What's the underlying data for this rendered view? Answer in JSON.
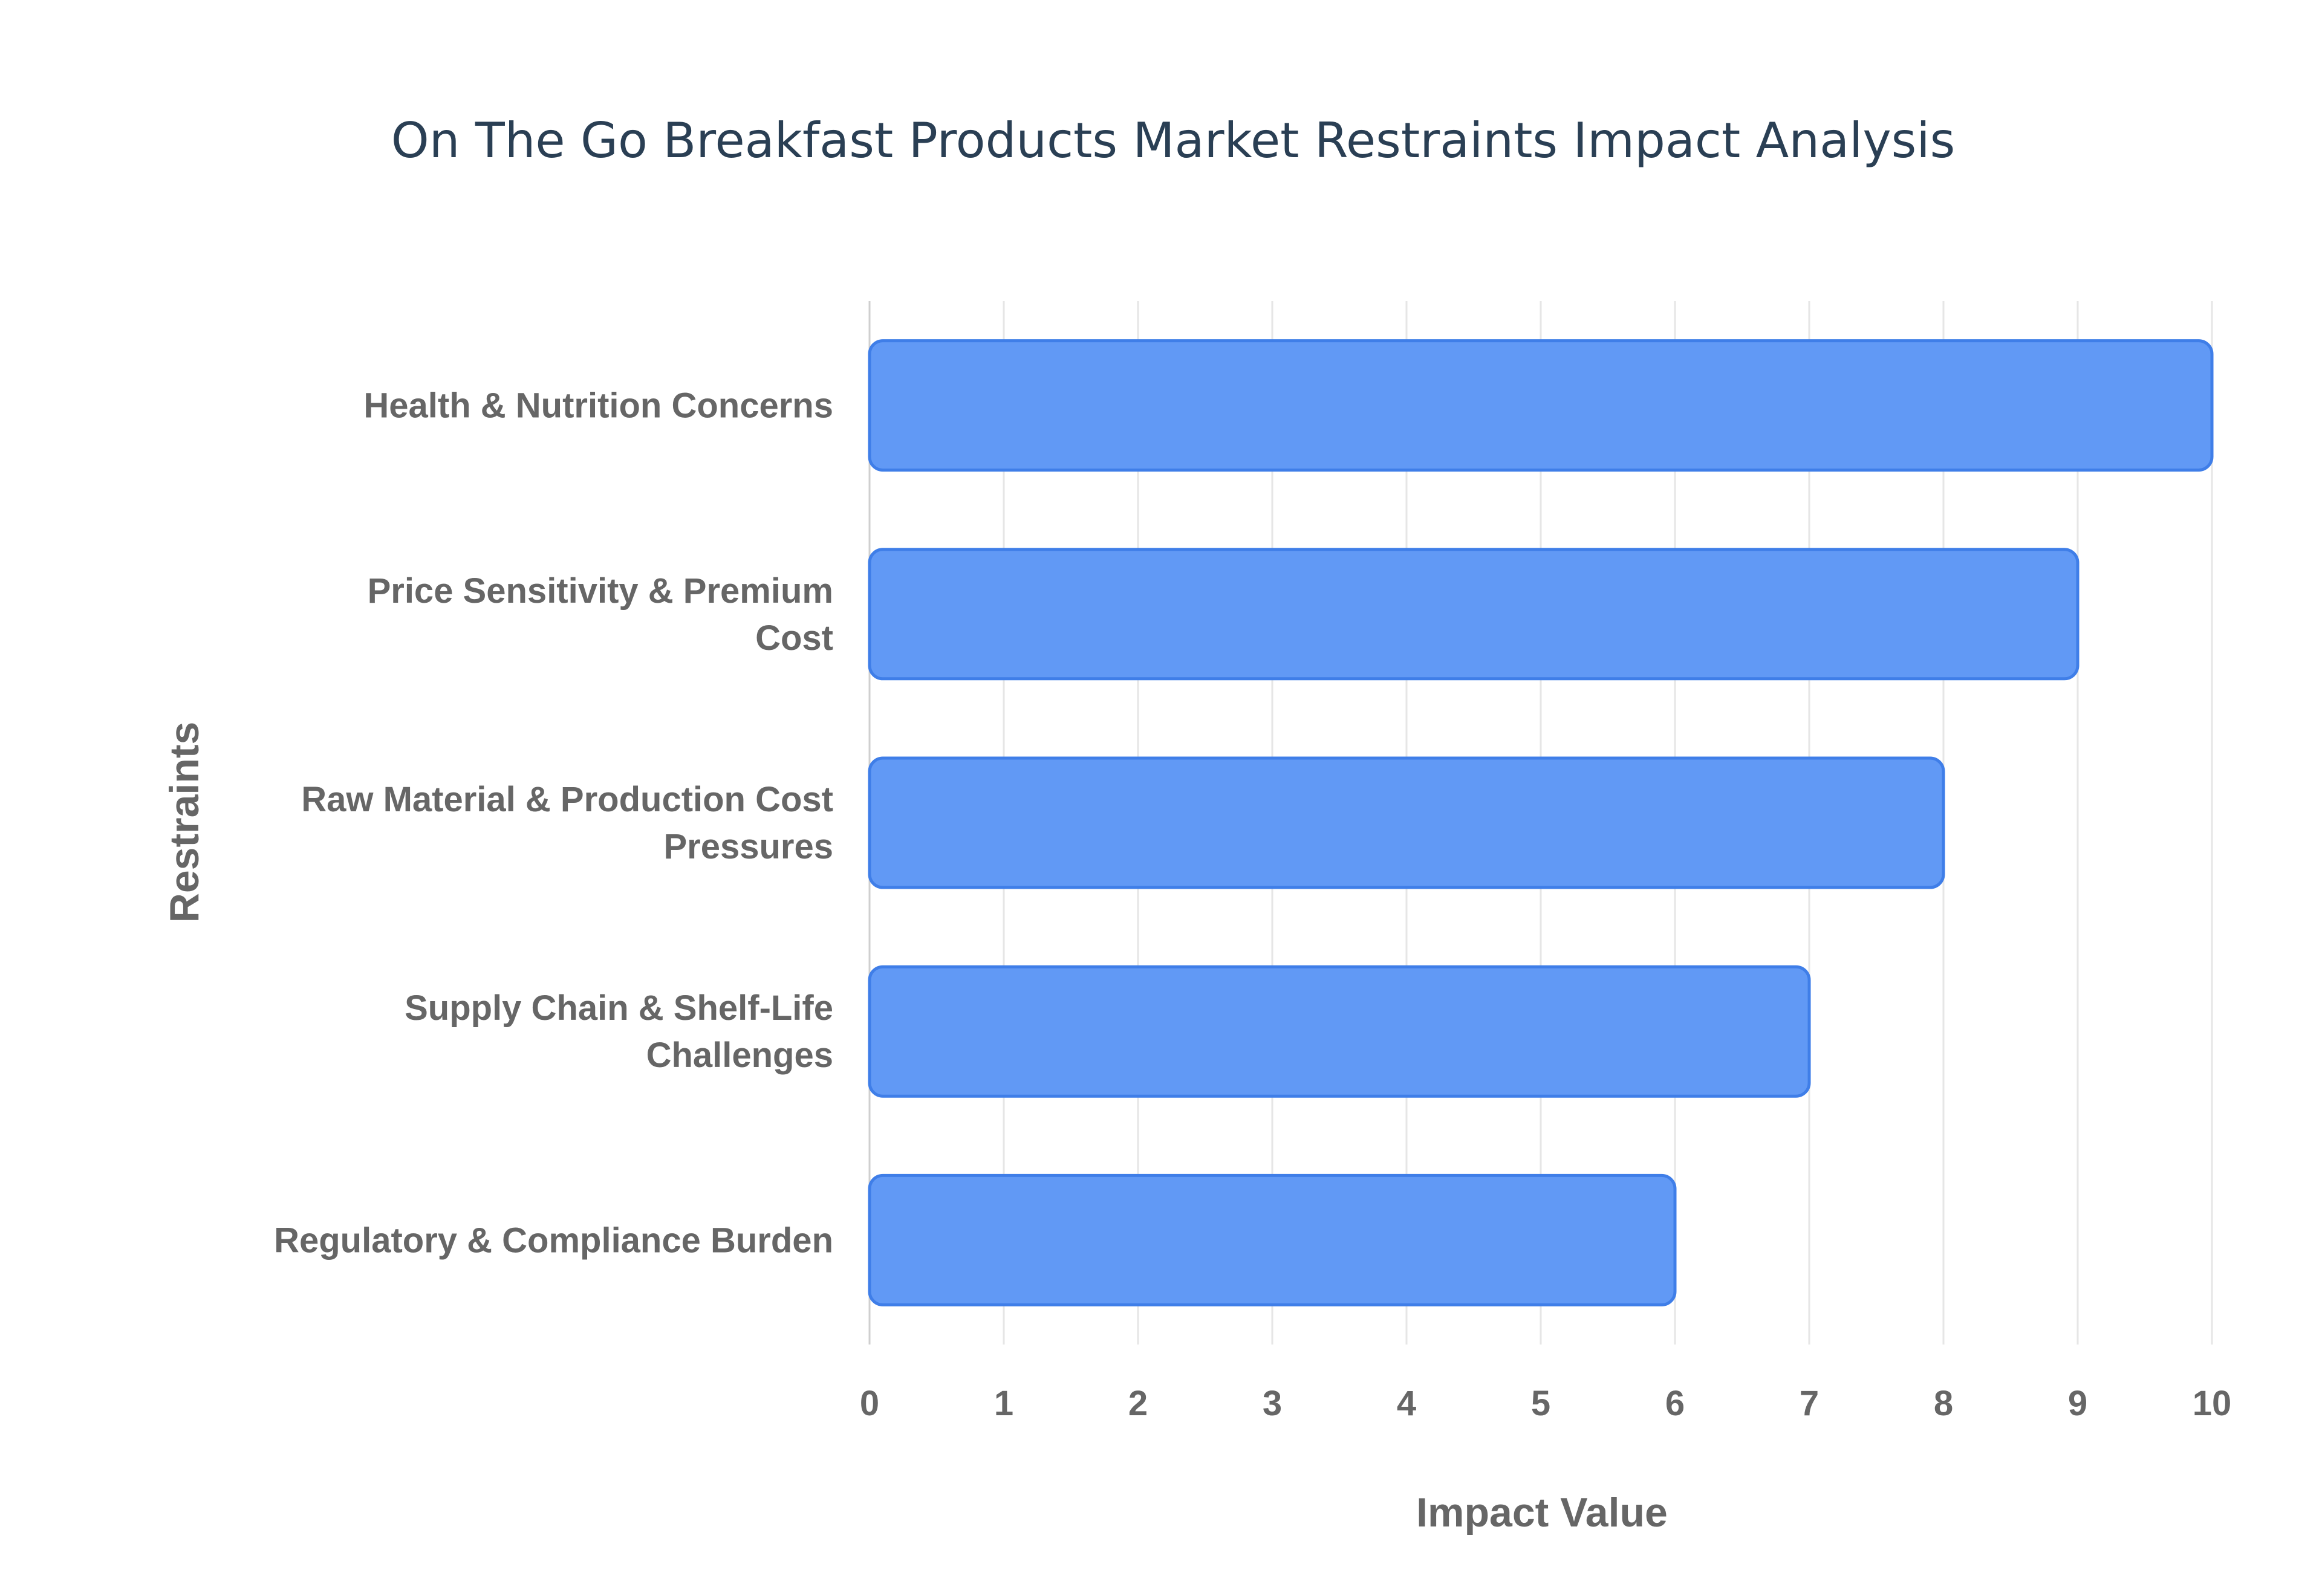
{
  "chart_data": {
    "type": "bar",
    "orientation": "horizontal",
    "title": "On The Go Breakfast Products Market Restraints Impact Analysis",
    "xlabel": "Impact Value",
    "ylabel": "Restraints",
    "categories": [
      [
        "Health & Nutrition Concerns"
      ],
      [
        "Price Sensitivity & Premium",
        "Cost"
      ],
      [
        "Raw Material & Production Cost",
        "Pressures"
      ],
      [
        "Supply Chain & Shelf-Life",
        "Challenges"
      ],
      [
        "Regulatory & Compliance Burden"
      ]
    ],
    "values": [
      10,
      9,
      8,
      7,
      6
    ],
    "xlim": [
      0,
      10
    ],
    "xticks": [
      "0",
      "1",
      "2",
      "3",
      "4",
      "5",
      "6",
      "7",
      "8",
      "9",
      "10"
    ],
    "grid": true,
    "colors": {
      "bar_fill": "#6199f5",
      "bar_stroke": "#3f7ee8"
    }
  }
}
